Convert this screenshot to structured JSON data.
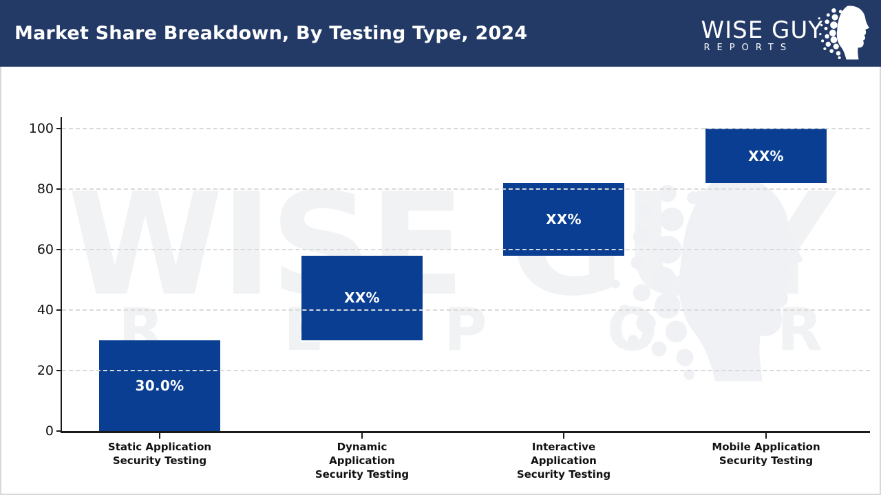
{
  "header": {
    "title": "Market Share Breakdown, By Testing Type, 2024",
    "logo": {
      "line1": "WISE GUY",
      "line2": "REPORTS"
    }
  },
  "watermark": {
    "line1": "WISE GUY",
    "line2": "R E P O R T S"
  },
  "chart_data": {
    "type": "bar",
    "variant": "waterfall",
    "title": "Market Share Breakdown, By Testing Type, 2024",
    "categories": [
      "Static Application\nSecurity Testing",
      "Dynamic\nApplication\nSecurity Testing",
      "Interactive\nApplication\nSecurity Testing",
      "Mobile Application\nSecurity Testing"
    ],
    "segments": [
      {
        "category": "Static Application Security Testing",
        "label": "30.0%",
        "start": 0,
        "end": 30
      },
      {
        "category": "Dynamic Application Security Testing",
        "label": "XX%",
        "start": 30,
        "end": 58
      },
      {
        "category": "Interactive Application Security Testing",
        "label": "XX%",
        "start": 58,
        "end": 82
      },
      {
        "category": "Mobile Application Security Testing",
        "label": "XX%",
        "start": 82,
        "end": 100
      }
    ],
    "ylim": [
      0,
      100
    ],
    "yticks": [
      0,
      20,
      40,
      60,
      80,
      100
    ],
    "grid": "horizontal-dashed",
    "legend": "none",
    "bar_color": "#0a3e92",
    "bar_label_color": "#ffffff"
  },
  "colors": {
    "header_bg": "#233a66",
    "bar": "#0a3e92",
    "gridline": "#d9d9d9",
    "axis": "#1a1a1a",
    "watermark": "#f1f2f4"
  }
}
